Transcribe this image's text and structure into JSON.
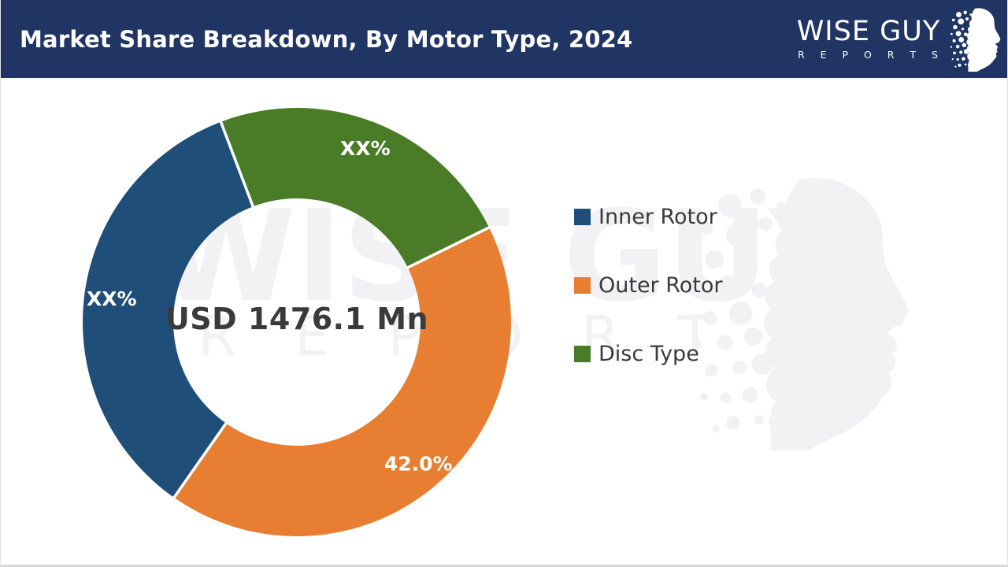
{
  "header": {
    "title": "Market Share Breakdown, By Motor Type, 2024",
    "logo": {
      "line1": "WISE GUY",
      "line2": "R E P O R T S"
    }
  },
  "watermark": {
    "line1": "WISE GUY",
    "line2": "R E P O R T S"
  },
  "chart_data": {
    "type": "pie",
    "subtype": "donut",
    "title": "Market Share Breakdown, By Motor Type, 2024",
    "center_label": "USD 1476.1 Mn",
    "start_angle_deg": 215,
    "inner_radius_ratio": 0.577,
    "legend_position": "right",
    "segments": [
      {
        "name": "Inner Rotor",
        "value_pct": 34.5,
        "data_label": "XX%",
        "color": "#1F4E79",
        "draw_order": 0
      },
      {
        "name": "Outer Rotor",
        "value_pct": 42.0,
        "data_label": "42.0%",
        "color": "#E87E32",
        "draw_order": 2
      },
      {
        "name": "Disc Type",
        "value_pct": 23.5,
        "data_label": "XX%",
        "color": "#4A7C28",
        "draw_order": 1
      }
    ]
  },
  "colors": {
    "header_bg": "#213564",
    "center_text": "#3A3A3A",
    "legend_text": "#3A3A3A",
    "watermark": "#F2F2F4",
    "separator": "#FFFFFF"
  }
}
